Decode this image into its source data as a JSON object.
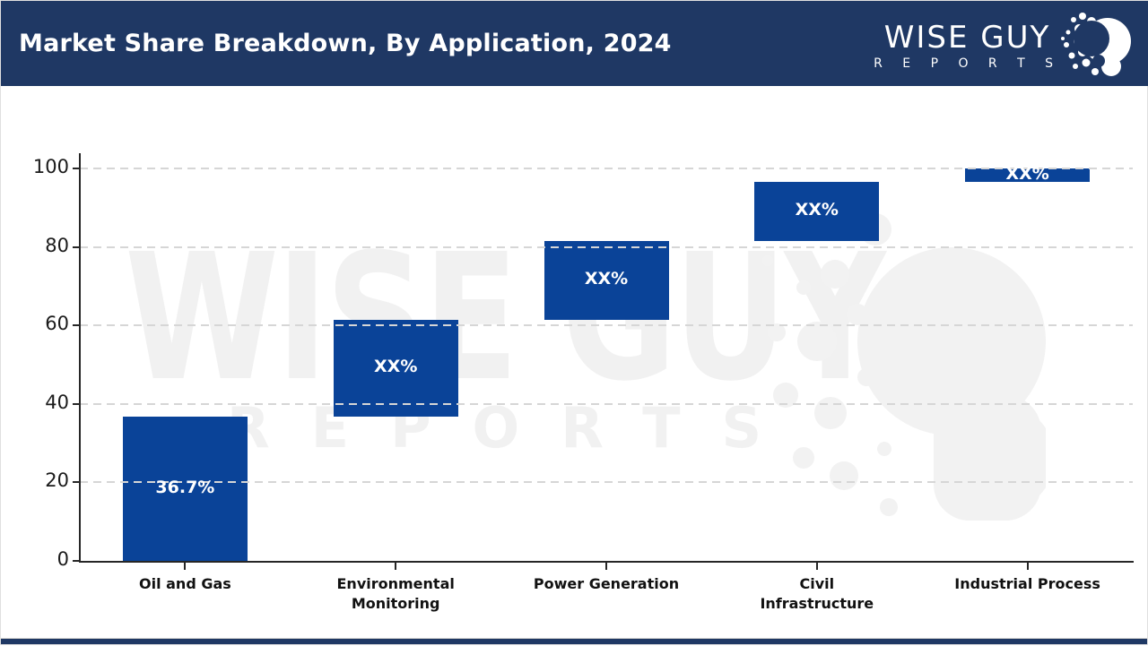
{
  "header": {
    "title": "Market Share Breakdown, By Application, 2024",
    "bg_color": "#1f3864",
    "logo": {
      "line1": "WISE GUY",
      "line2": "R E P O R T S"
    }
  },
  "watermark": {
    "line1": "WISE GUY",
    "line2": "REPORTS"
  },
  "chart_data": {
    "type": "bar",
    "subtype": "waterfall",
    "title": "Market Share Breakdown, By Application, 2024",
    "categories": [
      "Oil and Gas",
      "Environmental Monitoring",
      "Power Generation",
      "Civil Infrastructure",
      "Industrial Process"
    ],
    "x_labels": [
      "Oil and Gas",
      "Environmental\nMonitoring",
      "Power Generation",
      "Civil\nInfrastructure",
      "Industrial Process"
    ],
    "segments": [
      [
        0,
        36.7
      ],
      [
        36.7,
        61.5
      ],
      [
        61.5,
        81.5
      ],
      [
        81.5,
        96.5
      ],
      [
        96.5,
        100
      ]
    ],
    "bar_labels": [
      "36.7%",
      "XX%",
      "XX%",
      "XX%",
      "XX%"
    ],
    "y_ticks": [
      0,
      20,
      40,
      60,
      80,
      100
    ],
    "ylim": [
      0,
      104
    ],
    "xlabel": "",
    "ylabel": "",
    "bar_color": "#0a4398",
    "grid": "horizontal dashed, drawn over bars",
    "legend": "none"
  },
  "footer": {
    "bg_color": "#1f3864"
  }
}
